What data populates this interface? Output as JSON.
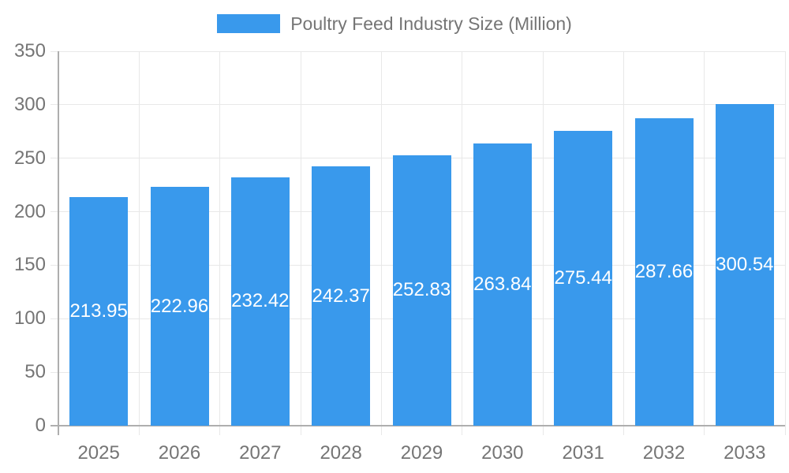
{
  "chart_data": {
    "type": "bar",
    "title": "Poultry Feed Industry Size (Million)",
    "legend": [
      "Poultry Feed Industry Size (Million)"
    ],
    "legend_position": "top",
    "categories": [
      "2025",
      "2026",
      "2027",
      "2028",
      "2029",
      "2030",
      "2031",
      "2032",
      "2033"
    ],
    "series": [
      {
        "name": "Poultry Feed Industry Size (Million)",
        "values": [
          213.95,
          222.96,
          232.42,
          242.37,
          252.83,
          263.84,
          275.44,
          287.66,
          300.54
        ]
      }
    ],
    "value_labels": [
      "213.95",
      "222.96",
      "232.42",
      "242.37",
      "252.83",
      "263.84",
      "275.44",
      "287.66",
      "300.54"
    ],
    "xlabel": "",
    "ylabel": "",
    "ylim": [
      0,
      350
    ],
    "yticks": [
      0,
      50,
      100,
      150,
      200,
      250,
      300,
      350
    ],
    "grid": true
  },
  "colors": {
    "bar": "#3999EC",
    "axis_text": "#757575",
    "value_label_text": "#FFFFFF",
    "grid_line": "#E8E8E8",
    "axis_line": "#AEAEAE",
    "background": "#FFFFFF"
  }
}
